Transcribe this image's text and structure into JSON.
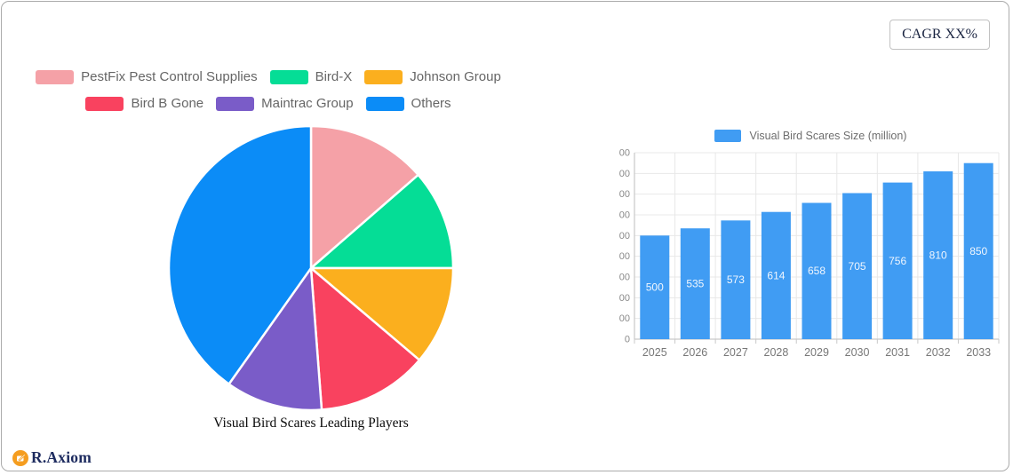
{
  "card": {
    "cagr_label": "CAGR XX%"
  },
  "brand": {
    "name": "R.Axiom",
    "icon": "pen-chart-icon",
    "icon_color": "#f59d1f",
    "text_color": "#1d2b5f"
  },
  "chart_data": [
    {
      "type": "pie",
      "title": "Visual Bird Scares Leading Players",
      "legend_position": "top",
      "direction": "clockwise",
      "start_angle_deg": 0,
      "slices": [
        {
          "label": "PestFix Pest Control Supplies",
          "value_pct": 13.6,
          "color": "#f5a1a7"
        },
        {
          "label": "Bird-X",
          "value_pct": 11.4,
          "color": "#05dd96"
        },
        {
          "label": "Johnson Group",
          "value_pct": 11.2,
          "color": "#fbaf1e"
        },
        {
          "label": "Bird B Gone",
          "value_pct": 12.6,
          "color": "#f9425f"
        },
        {
          "label": "Maintrac Group",
          "value_pct": 11.0,
          "color": "#7a5cc8"
        },
        {
          "label": "Others",
          "value_pct": 40.2,
          "color": "#0b8cf7"
        }
      ]
    },
    {
      "type": "bar",
      "legend": "Visual Bird Scares Size (million)",
      "bar_color": "#409cf3",
      "categories": [
        "2025",
        "2026",
        "2027",
        "2028",
        "2029",
        "2030",
        "2031",
        "2032",
        "2033"
      ],
      "values": [
        500,
        535,
        573,
        614,
        658,
        705,
        756,
        810,
        850
      ],
      "ylim": [
        0,
        900
      ],
      "ytick_step": 100,
      "grid": true,
      "value_label_style": "white-inside-center",
      "legend_position": "top-center"
    }
  ]
}
